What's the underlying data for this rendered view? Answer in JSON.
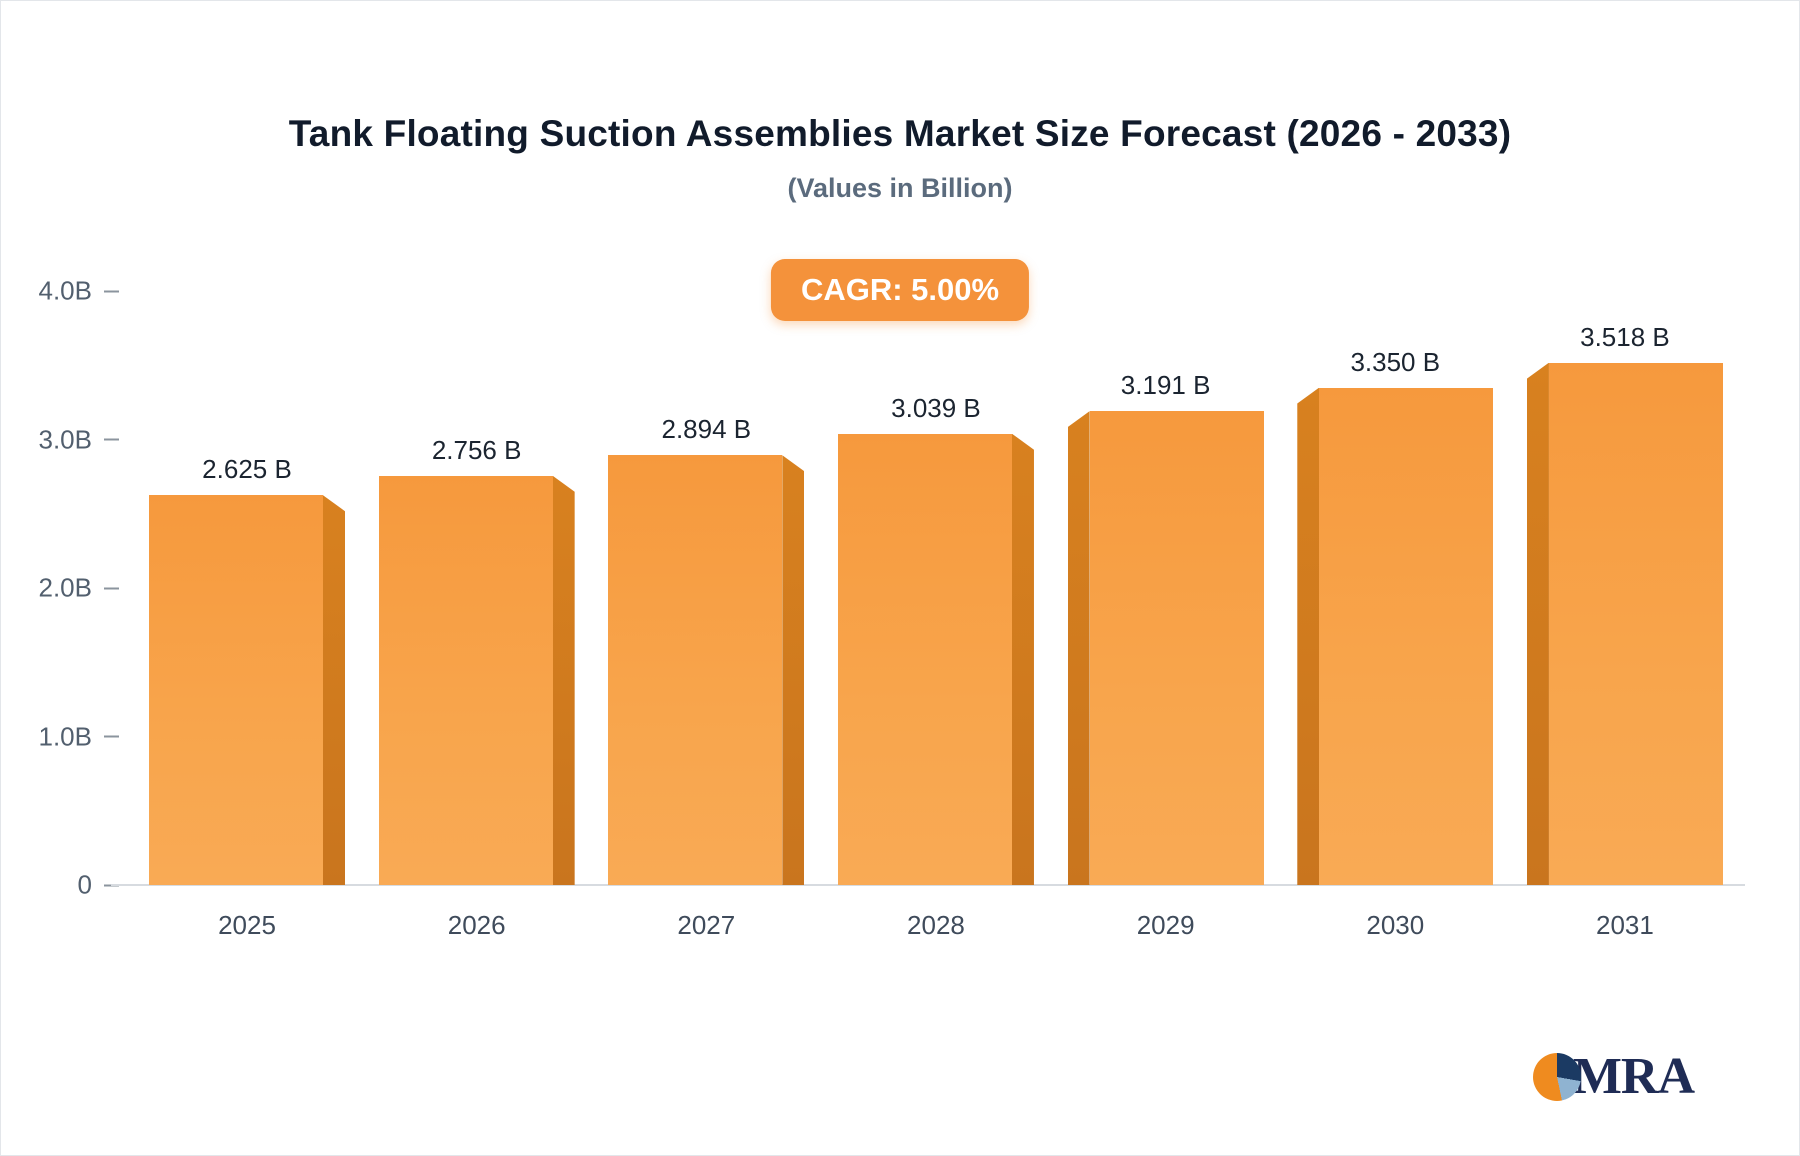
{
  "page": {
    "logo_text": "MRA"
  },
  "chart_data": {
    "type": "bar",
    "title": "Tank Floating Suction Assemblies Market Size Forecast (2026 - 2033)",
    "subtitle": "(Values in Billion)",
    "cagr_label": "CAGR: 5.00%",
    "categories": [
      "2025",
      "2026",
      "2027",
      "2028",
      "2029",
      "2030",
      "2031"
    ],
    "values": [
      2.625,
      2.756,
      2.894,
      3.039,
      3.191,
      3.35,
      3.518
    ],
    "value_labels": [
      "2.625 B",
      "2.756 B",
      "2.894 B",
      "3.039 B",
      "3.191 B",
      "3.350 B",
      "3.518 B"
    ],
    "ylim": [
      0,
      4.0
    ],
    "yticks": [
      0,
      1.0,
      2.0,
      3.0,
      4.0
    ],
    "ytick_labels": [
      "0",
      "1.0B",
      "2.0B",
      "3.0B",
      "4.0B"
    ],
    "xlabel": "",
    "ylabel": "",
    "grid": false,
    "legend": false,
    "colors": {
      "bar_top": "#f6993d",
      "bar_bottom": "#f9aa55",
      "bar_side": "#cf7b20",
      "badge_bg": "#f4923b",
      "title_text": "#111b2b",
      "subtitle_text": "#5b6b7d",
      "axis_text": "#525f6e",
      "baseline": "#d7dbe0",
      "logo_navy": "#1f2c55"
    }
  }
}
